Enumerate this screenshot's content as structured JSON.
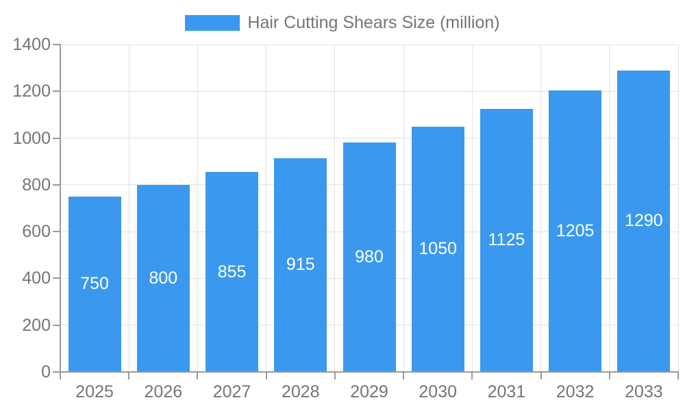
{
  "chart_data": {
    "type": "bar",
    "title": "Hair Cutting Shears Size (million)",
    "legend": [
      "Hair Cutting Shears Size (million)"
    ],
    "legend_position": "top",
    "categories": [
      "2025",
      "2026",
      "2027",
      "2028",
      "2029",
      "2030",
      "2031",
      "2032",
      "2033"
    ],
    "values": [
      750,
      800,
      855,
      915,
      980,
      1050,
      1125,
      1205,
      1290
    ],
    "xlabel": "",
    "ylabel": "",
    "ylim": [
      0,
      1400
    ],
    "yticks": [
      0,
      200,
      400,
      600,
      800,
      1000,
      1200,
      1400
    ],
    "grid": true,
    "bar_labels_inside": true,
    "colors": {
      "bar": "#3A99EE",
      "bar_label_text": "#FFFFFF",
      "axis_line": "#999999",
      "tick_mark": "#999999",
      "gridline": "#E2E2E2",
      "axis_text": "#757575",
      "legend_text": "#757575",
      "background": "#FFFFFF"
    }
  }
}
